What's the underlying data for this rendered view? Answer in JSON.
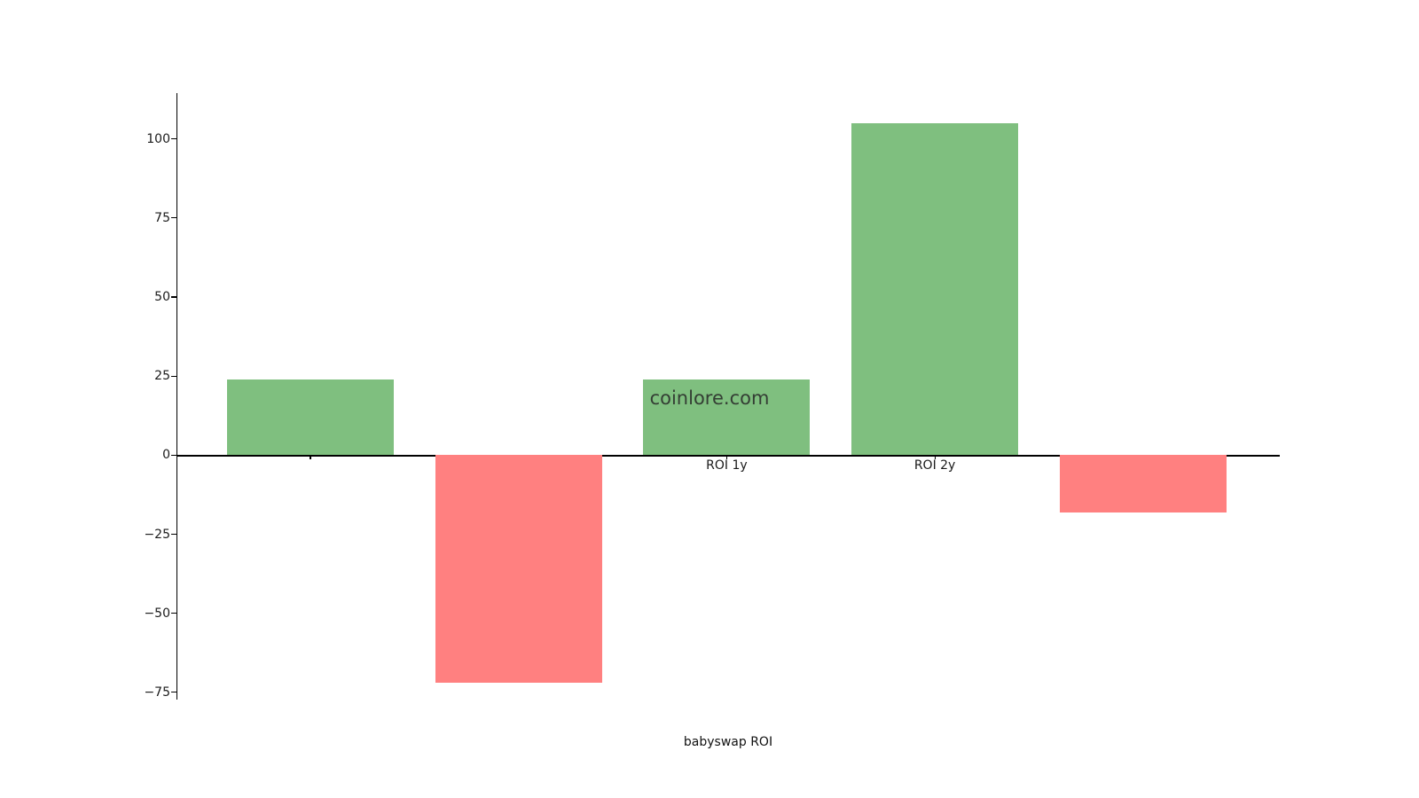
{
  "chart_data": {
    "type": "bar",
    "title": "",
    "xlabel": "babyswap ROI",
    "ylabel": "",
    "categories": [
      "",
      "",
      "ROI 1y",
      "ROI 2y",
      ""
    ],
    "values": [
      24,
      -72,
      24,
      105,
      -18
    ],
    "bar_colors": [
      "#7fbf7f",
      "#ff8080",
      "#7fbf7f",
      "#7fbf7f",
      "#ff8080"
    ],
    "yticks": [
      100,
      75,
      50,
      25,
      0,
      -25,
      -50,
      -75
    ],
    "ylim": [
      -77,
      114.5
    ],
    "grid": false,
    "legend": "none",
    "colors": {
      "positive": "#7fbf7f",
      "negative": "#ff8080",
      "axis": "#000000",
      "tick_text": "#1a1a1a"
    },
    "notes": "negative bars overlap the zero axis line and hide their category tick labels"
  },
  "watermark": {
    "text": "coinlore.com",
    "color": "#282828"
  }
}
